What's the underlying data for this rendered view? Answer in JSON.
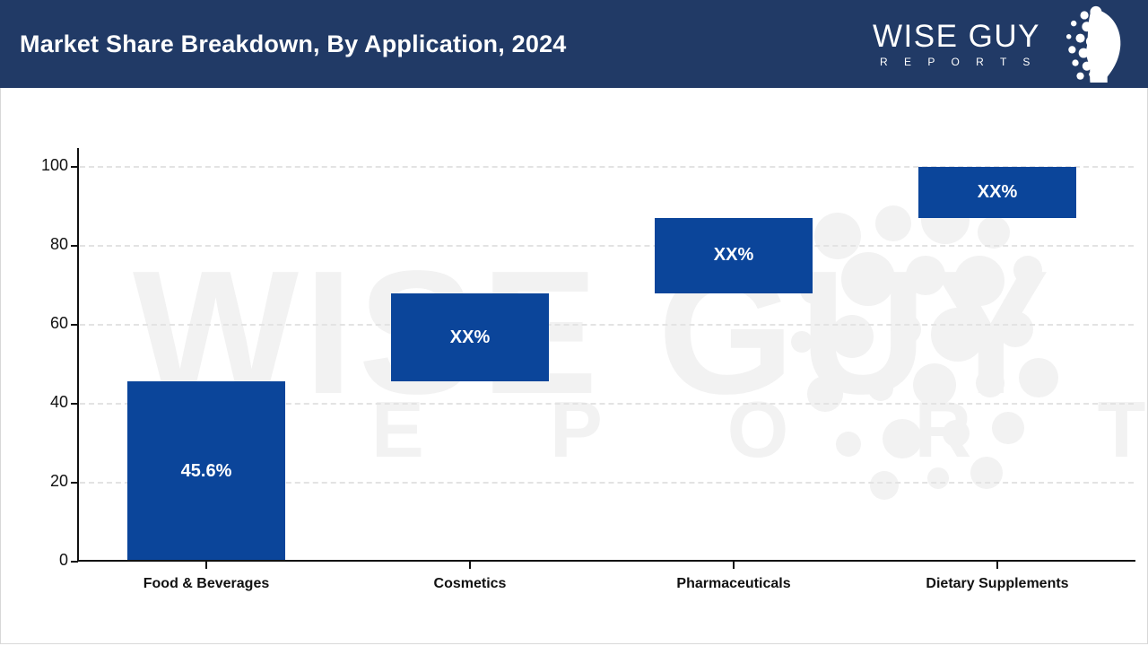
{
  "header": {
    "title": "Market Share Breakdown, By Application, 2024",
    "logo": {
      "line1": "WISE GUY",
      "line2": "R E P O R T S"
    }
  },
  "watermark": {
    "line1": "WISE GUY",
    "line2": "R E P O R T S"
  },
  "chart_data": {
    "type": "bar",
    "subtype": "waterfall",
    "title": "Market Share Breakdown, By Application, 2024",
    "categories": [
      "Food & Beverages",
      "Cosmetics",
      "Pharmaceuticals",
      "Dietary Supplements"
    ],
    "bar_labels": [
      "45.6%",
      "XX%",
      "XX%",
      "XX%"
    ],
    "segments": [
      {
        "start": 0,
        "end": 45.6
      },
      {
        "start": 45.6,
        "end": 68
      },
      {
        "start": 68,
        "end": 87
      },
      {
        "start": 87,
        "end": 100
      }
    ],
    "segment_note": "ends of XX% bars estimated from pixel positions",
    "ylim": [
      0,
      100
    ],
    "yticks": [
      0,
      20,
      40,
      60,
      80,
      100
    ],
    "ytick_labels": [
      "0",
      "20",
      "40",
      "60",
      "80",
      "100"
    ],
    "grid": "horizontal dashed",
    "legend": null,
    "colors": {
      "bar": "#0b459a",
      "bar_label": "#ffffff",
      "header_bg": "#213a66",
      "header_text": "#ffffff",
      "axis": "#111111",
      "gridline": "#e3e3e3",
      "watermark": "#f2f2f2",
      "frame_border": "#d8d8d8"
    }
  }
}
